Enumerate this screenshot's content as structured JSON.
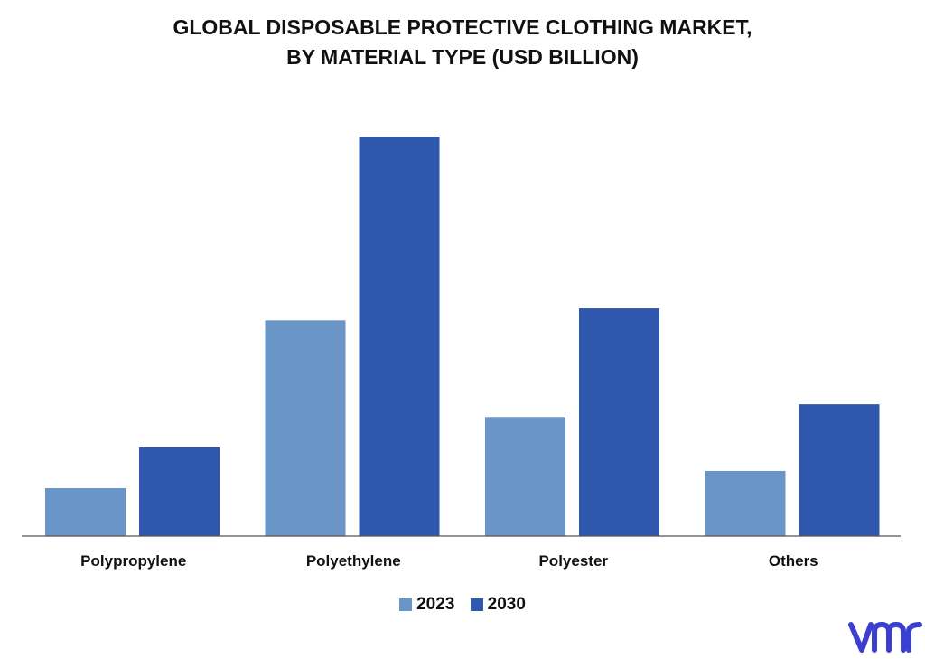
{
  "header": {
    "title_line1": "GLOBAL DISPOSABLE PROTECTIVE CLOTHING MARKET,",
    "title_line2": "BY MATERIAL TYPE (USD BILLION)"
  },
  "colors": {
    "series_2023": "#6a95c9",
    "series_2030": "#2f57ad",
    "axis": "#555555",
    "logo": "#3b3fd0"
  },
  "logo": {
    "text": "vmr"
  },
  "chart_data": {
    "type": "bar",
    "title": "GLOBAL DISPOSABLE PROTECTIVE CLOTHING MARKET, BY MATERIAL TYPE (USD BILLION)",
    "categories": [
      "Polypropylene",
      "Polyethylene",
      "Polyester",
      "Others"
    ],
    "series": [
      {
        "name": "2023",
        "values": [
          1.2,
          5.4,
          2.98,
          1.63
        ]
      },
      {
        "name": "2030",
        "values": [
          2.22,
          10.0,
          5.7,
          3.3
        ]
      }
    ],
    "ylim": [
      0,
      10.0
    ],
    "grid": false,
    "legend": "bottom"
  }
}
